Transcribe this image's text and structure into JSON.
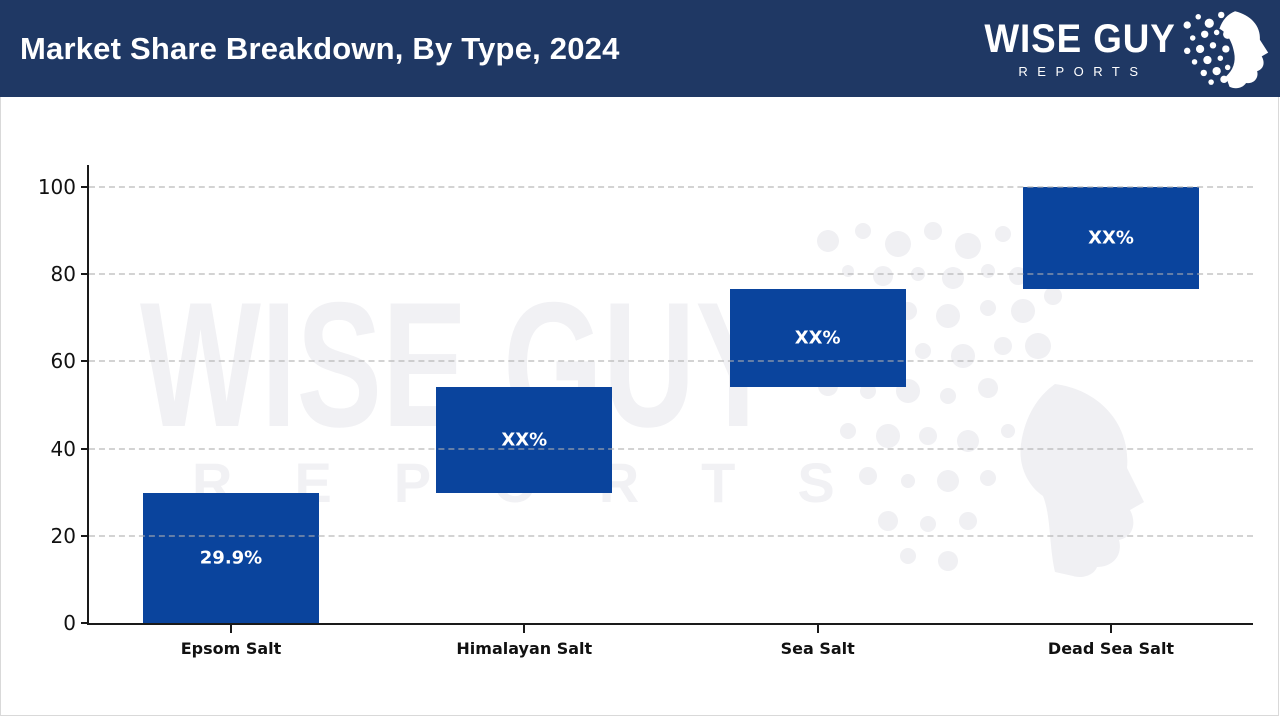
{
  "header": {
    "title": "Market Share Breakdown, By Type, 2024",
    "logo": {
      "line1": "WISE GUY",
      "line2": "REPORTS"
    }
  },
  "watermark": {
    "line1": "WISE GUY",
    "line2": "REPORTS"
  },
  "chart_data": {
    "type": "bar",
    "variant": "waterfall",
    "title": "Market Share Breakdown, By Type, 2024",
    "categories": [
      "Epsom Salt",
      "Himalayan Salt",
      "Sea Salt",
      "Dead Sea Salt"
    ],
    "segments": [
      {
        "category": "Epsom Salt",
        "start": 0,
        "end": 29.9,
        "label": "29.9%"
      },
      {
        "category": "Himalayan Salt",
        "start": 29.9,
        "end": 54.2,
        "label": "XX%"
      },
      {
        "category": "Sea Salt",
        "start": 54.2,
        "end": 76.7,
        "label": "XX%"
      },
      {
        "category": "Dead Sea Salt",
        "start": 76.7,
        "end": 100,
        "label": "XX%"
      }
    ],
    "xlabel": "",
    "ylabel": "",
    "ylim": [
      0,
      105
    ],
    "yticks": [
      0,
      20,
      40,
      60,
      80,
      100
    ],
    "grid": "horizontal-dashed",
    "legend": "none"
  },
  "colors": {
    "header_bg": "#1f3864",
    "bar": "#0a449d",
    "bar_label": "#ffffff",
    "grid": "#cccccc",
    "axis": "#1a1a1a",
    "watermark": "#f1f1f4"
  }
}
